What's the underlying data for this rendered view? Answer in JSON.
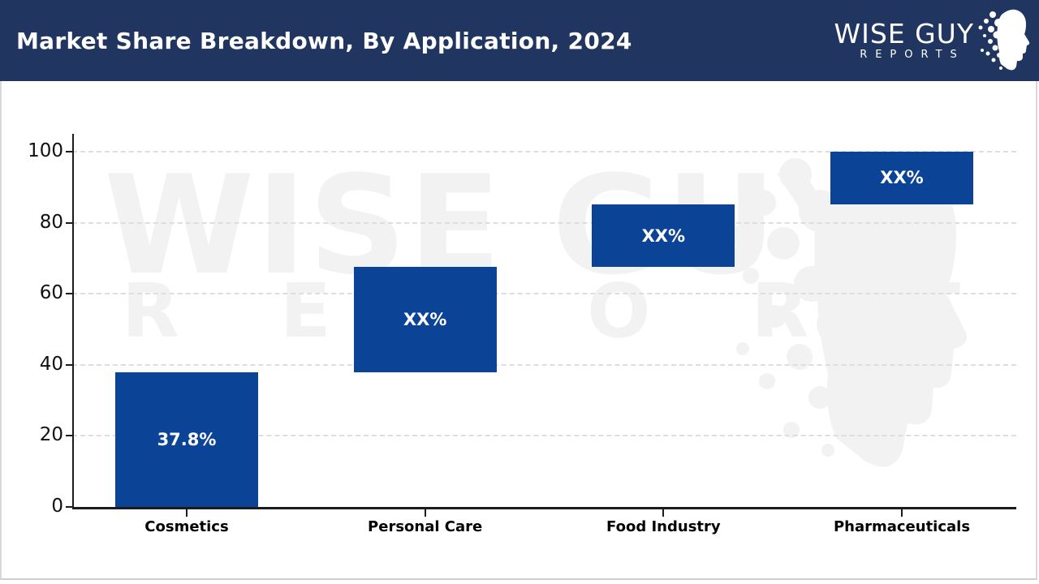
{
  "header": {
    "title": "Market Share Breakdown, By Application, 2024",
    "bg_color": "#20355f",
    "logo": {
      "line1": "WISE GUY",
      "line2": "REPORTS"
    }
  },
  "watermark": {
    "line1": "WISE GUY",
    "line2": "REPORTS"
  },
  "chart_data": {
    "type": "bar",
    "subtype": "waterfall",
    "title": "Market Share Breakdown, By Application, 2024",
    "categories": [
      "Cosmetics",
      "Personal Care",
      "Food Industry",
      "Pharmaceuticals"
    ],
    "segments": [
      {
        "category": "Cosmetics",
        "start": 0,
        "end": 37.8,
        "label": "37.8%"
      },
      {
        "category": "Personal Care",
        "start": 37.8,
        "end": 67.5,
        "label": "XX%"
      },
      {
        "category": "Food Industry",
        "start": 67.5,
        "end": 85.2,
        "label": "XX%"
      },
      {
        "category": "Pharmaceuticals",
        "start": 85.2,
        "end": 100,
        "label": "XX%"
      }
    ],
    "ylim": [
      0,
      100
    ],
    "yticks": [
      0,
      20,
      40,
      60,
      80,
      100
    ],
    "grid": "horizontal-dashed",
    "bar_color": "#0b4396",
    "bar_label_color": "#ffffff",
    "legend": "none"
  }
}
